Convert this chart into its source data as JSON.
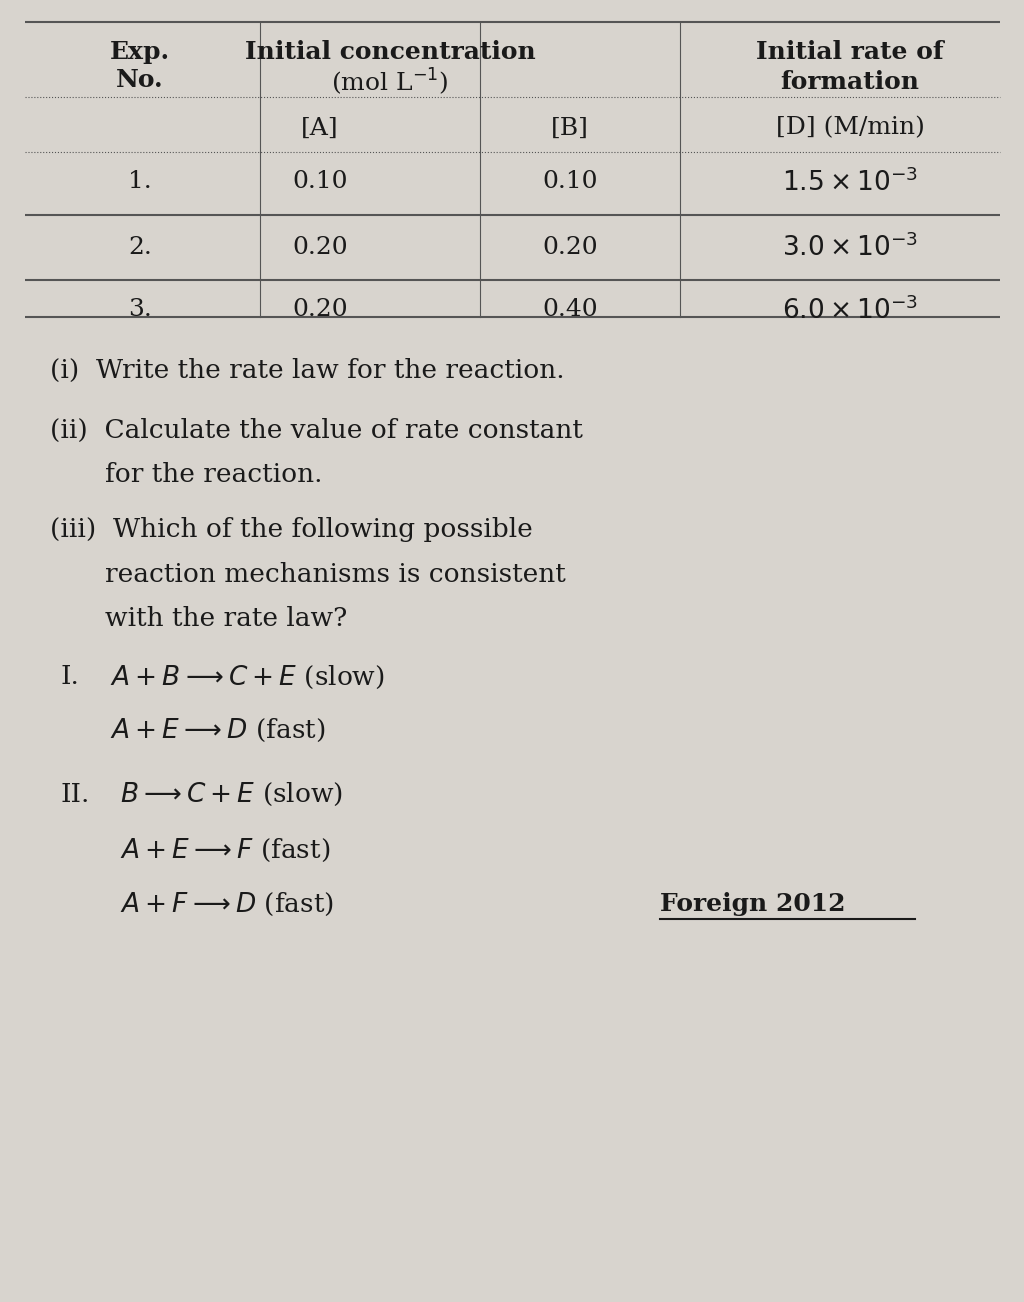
{
  "bg_color": "#d8d4ce",
  "text_color": "#1a1a1a",
  "table_rows": [
    [
      "1.",
      "0.10",
      "0.10",
      "$1.5\\times10^{-3}$"
    ],
    [
      "2.",
      "0.20",
      "0.20",
      "$3.0\\times10^{-3}$"
    ],
    [
      "3.",
      "0.20",
      "0.40",
      "$6.0\\times10^{-3}$"
    ]
  ],
  "footer": "Foreign 2012",
  "font_size_table": 18,
  "font_size_body": 19,
  "font_size_footer": 18
}
